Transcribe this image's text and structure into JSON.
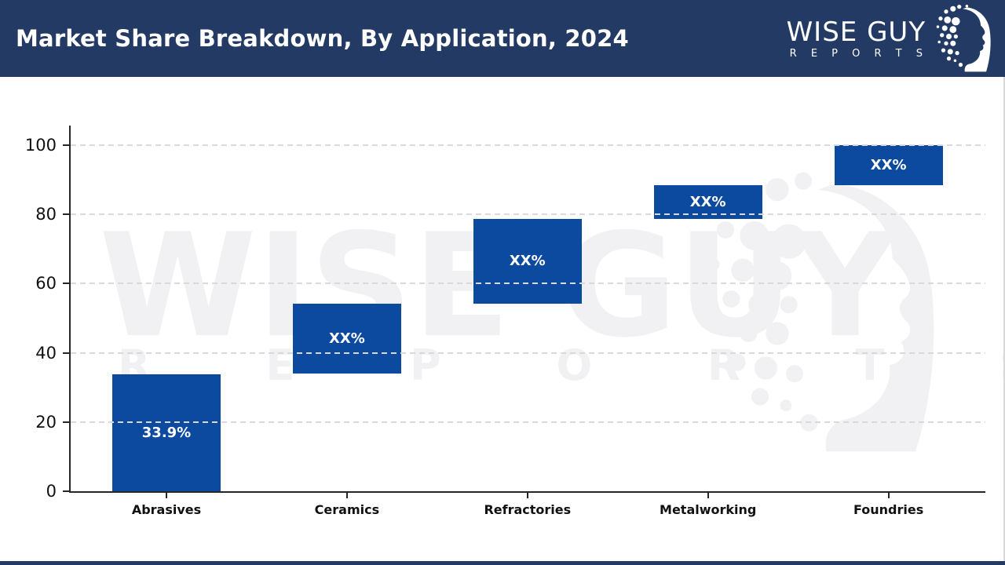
{
  "header": {
    "title": "Market Share Breakdown, By Application, 2024",
    "background_color": "#233A64",
    "logo": {
      "line1": "WISE GUY",
      "line2": "R E P O R T S"
    }
  },
  "watermark": {
    "line1": "WISE GUY",
    "line2": "R E P O R T S"
  },
  "chart_data": {
    "type": "bar",
    "subtype": "waterfall",
    "title": "Market Share Breakdown, By Application, 2024",
    "xlabel": "",
    "ylabel": "",
    "categories": [
      "Abrasives",
      "Ceramics",
      "Refractories",
      "Metalworking",
      "Foundries"
    ],
    "segments": [
      {
        "category": "Abrasives",
        "start": 0,
        "end": 33.9,
        "label": "33.9%"
      },
      {
        "category": "Ceramics",
        "start": 33.9,
        "end": 54.3,
        "label": "XX%"
      },
      {
        "category": "Refractories",
        "start": 54.3,
        "end": 78.6,
        "label": "XX%"
      },
      {
        "category": "Metalworking",
        "start": 78.6,
        "end": 88.5,
        "label": "XX%"
      },
      {
        "category": "Foundries",
        "start": 88.5,
        "end": 100,
        "label": "XX%"
      }
    ],
    "y_ticks": [
      0,
      20,
      40,
      60,
      80,
      100
    ],
    "ylim": [
      0,
      105.7
    ],
    "grid": "horizontal-dashed",
    "legend": "none",
    "bar_color": "#0B4A9F",
    "bar_label_color": "#FFFFFF",
    "axis_color": "#262626",
    "grid_color": "#D9D9D9"
  }
}
